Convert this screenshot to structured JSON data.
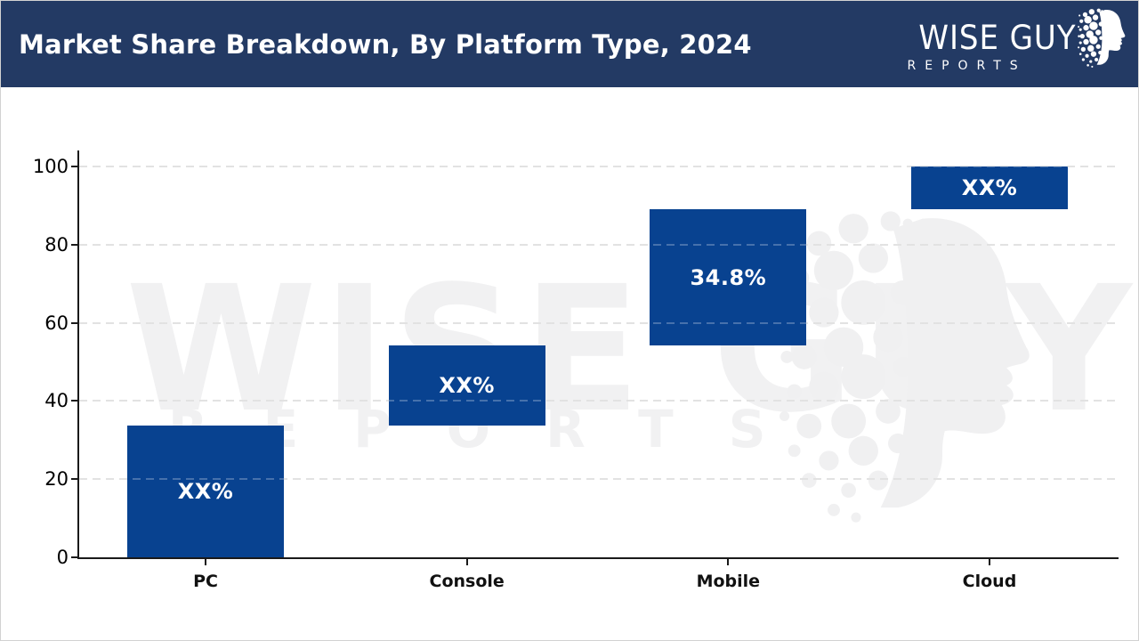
{
  "header": {
    "title": "Market Share Breakdown, By Platform Type, 2024",
    "logo": {
      "line1": "WISE GUY",
      "line2": "REPORTS"
    }
  },
  "watermark": {
    "line1": "WISE GUY",
    "line2": "REPORTS"
  },
  "colors": {
    "header_bg": "#233a64",
    "bar": "#084290",
    "bar_label": "#ffffff",
    "axis": "#1a1a1a",
    "gridline": "#d9d9d9",
    "watermark": "#f1f1f2",
    "page_border": "#d2d2d2"
  },
  "chart_data": {
    "type": "bar",
    "subtype": "floating-waterfall",
    "title": "Market Share Breakdown, By Platform Type, 2024",
    "categories": [
      "PC",
      "Console",
      "Mobile",
      "Cloud"
    ],
    "segments": [
      {
        "category": "PC",
        "start": 0,
        "end": 33.8,
        "value": 33.8,
        "value_label": "XX%"
      },
      {
        "category": "Console",
        "start": 33.8,
        "end": 54.2,
        "value": 20.4,
        "value_label": "XX%"
      },
      {
        "category": "Mobile",
        "start": 54.2,
        "end": 89.0,
        "value": 34.8,
        "value_label": "34.8%"
      },
      {
        "category": "Cloud",
        "start": 89.0,
        "end": 100,
        "value": 11.0,
        "value_label": "XX%"
      }
    ],
    "xlabel": "",
    "ylabel": "",
    "ylim": [
      0,
      100
    ],
    "yticks": [
      0,
      20,
      40,
      60,
      80,
      100
    ],
    "grid": {
      "horizontal": true,
      "style": "dashed",
      "over_bars": true
    },
    "legend": null
  }
}
